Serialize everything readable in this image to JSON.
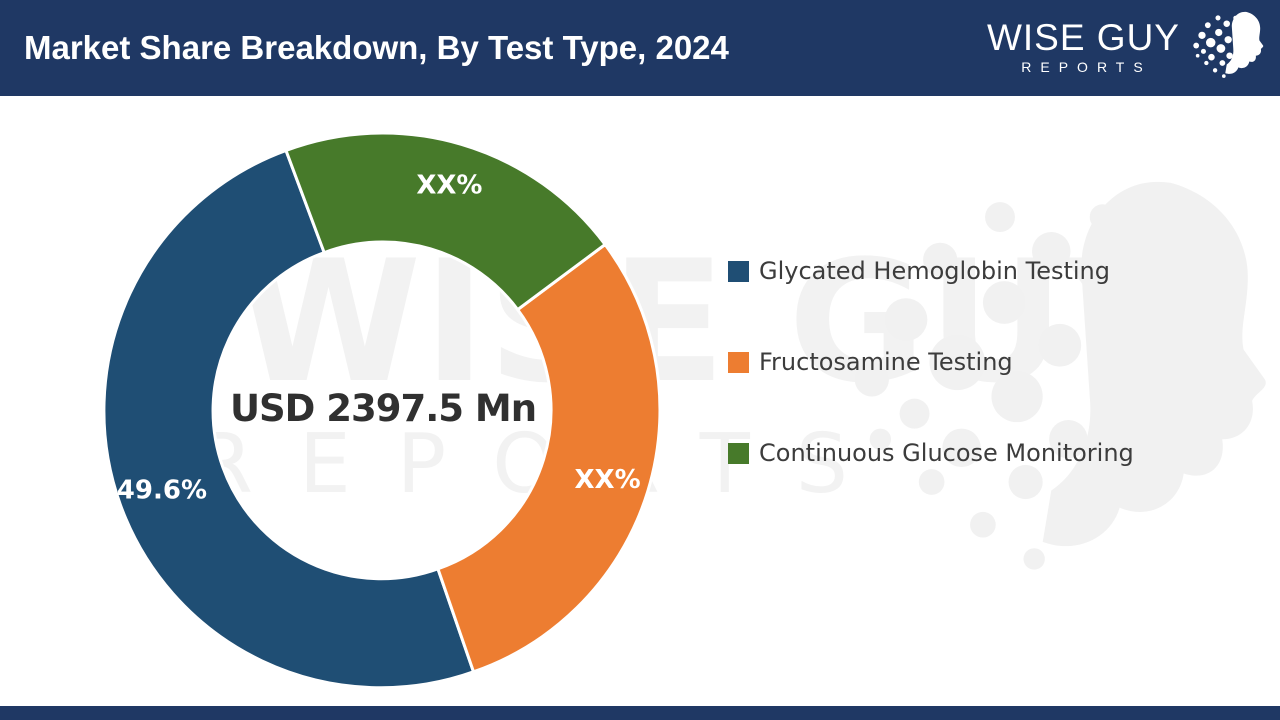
{
  "header": {
    "title": "Market Share Breakdown, By Test Type, 2024",
    "bg_color": "#1F3864",
    "brand": {
      "wordmark": "WISE GUY",
      "subtext": "REPORTS"
    }
  },
  "watermark": {
    "wordmark": "WISE GUY",
    "subtext": "REPORTS"
  },
  "legend": {
    "items": [
      {
        "label": "Glycated Hemoglobin Testing",
        "color": "#1F4E74"
      },
      {
        "label": "Fructosamine Testing",
        "color": "#ED7D31"
      },
      {
        "label": "Continuous Glucose Monitoring",
        "color": "#477A2A"
      }
    ]
  },
  "chart_data": {
    "type": "pie",
    "subtype": "donut",
    "title": "Market Share Breakdown, By Test Type, 2024",
    "center_text": "USD 2397.5 Mn",
    "categories": [
      "Glycated Hemoglobin Testing",
      "Fructosamine Testing",
      "Continuous Glucose Monitoring"
    ],
    "values": [
      49.6,
      29.9,
      20.5
    ],
    "displayed_labels": [
      "49.6%",
      "XX%",
      "XX%"
    ],
    "colors": [
      "#1F4E74",
      "#ED7D31",
      "#477A2A"
    ],
    "start_angle_deg": 110.5,
    "direction": "counterclockwise",
    "legend_position": "right",
    "units": "percent"
  }
}
